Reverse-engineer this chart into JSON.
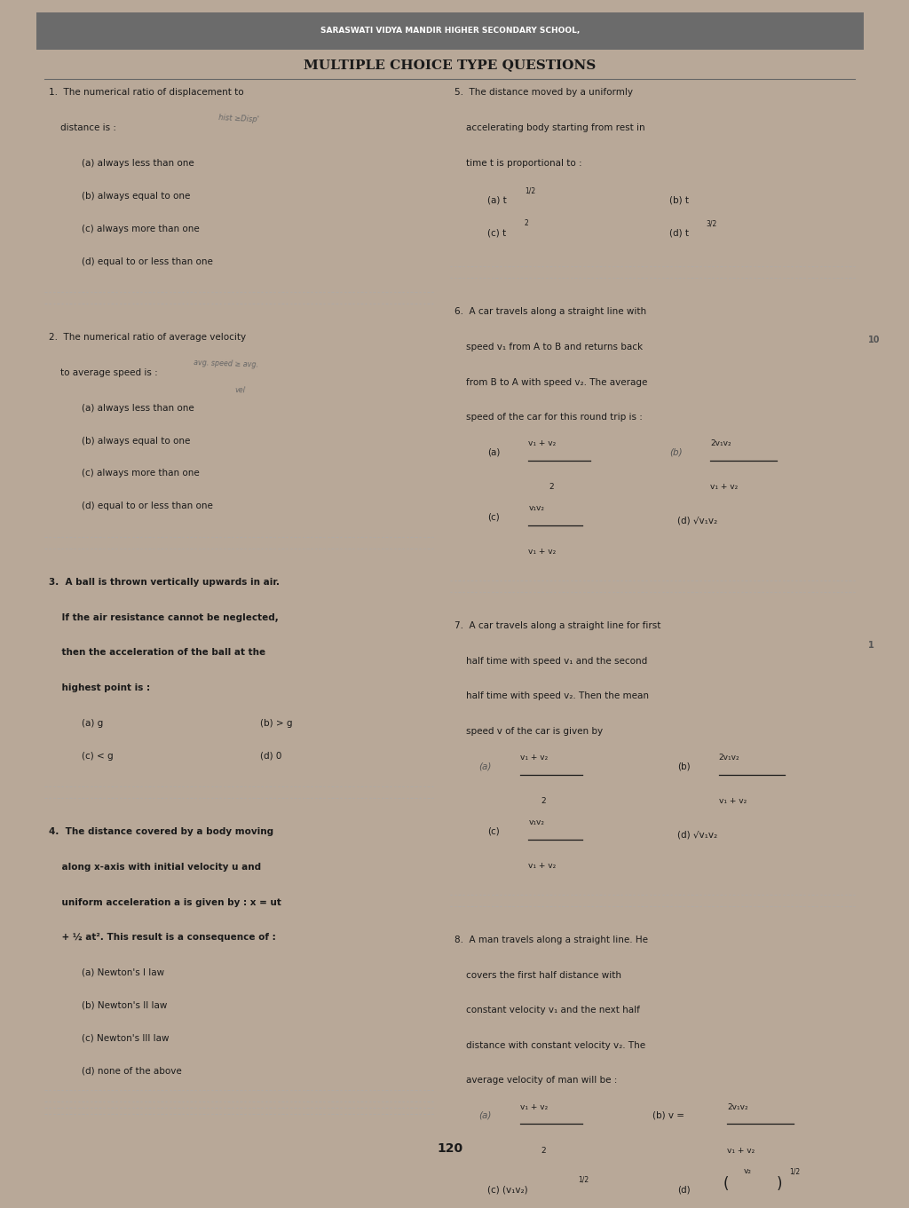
{
  "fig_bg": "#b8a898",
  "page_bg": "#e8e2d8",
  "text_color": "#1a1a1a",
  "header_bg": "#555555",
  "header_text": "SARASWATI VIDYA MANDIR HIGHER SECONDARY SCHOOL,",
  "title": "MULTIPLE CHOICE TYPE QUESTIONS",
  "page_number": "120",
  "dot_color": "#999999",
  "margin_num": "10"
}
